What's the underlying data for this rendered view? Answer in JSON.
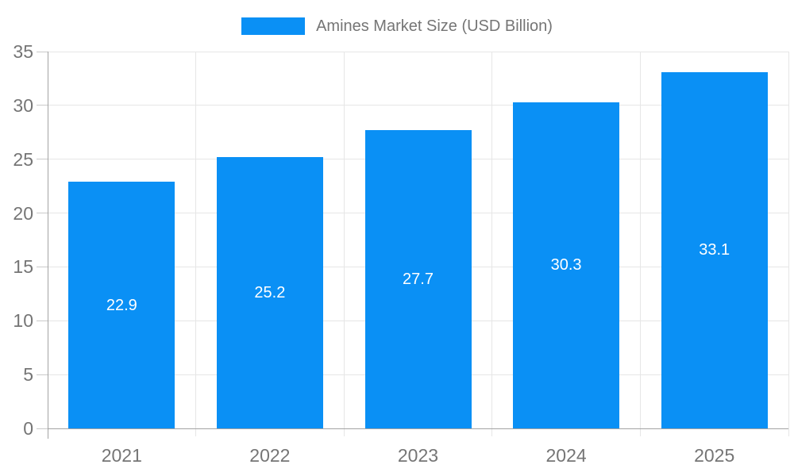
{
  "chart_data": {
    "type": "bar",
    "title": "Amines Market Size (USD Billion)",
    "categories": [
      "2021",
      "2022",
      "2023",
      "2024",
      "2025"
    ],
    "values": [
      22.9,
      25.2,
      27.7,
      30.3,
      33.1
    ],
    "value_labels": [
      "22.9",
      "25.2",
      "27.7",
      "30.3",
      "33.1"
    ],
    "ylim": [
      0,
      35
    ],
    "yticks": [
      0,
      5,
      10,
      15,
      20,
      25,
      30,
      35
    ],
    "ytick_labels": [
      "0",
      "5",
      "10",
      "15",
      "20",
      "25",
      "30",
      "35"
    ],
    "xlabel": "",
    "ylabel": "",
    "grid": true,
    "legend": {
      "position": "top",
      "label": "Amines Market Size (USD Billion)"
    },
    "colors": {
      "bar": "#0A90F5",
      "axis": "#a3a3a3",
      "grid": "#e6e6e6",
      "tick": "#c9c9c9",
      "tick_label": "#757575",
      "value_label": "#ffffff",
      "background": "#ffffff"
    }
  }
}
